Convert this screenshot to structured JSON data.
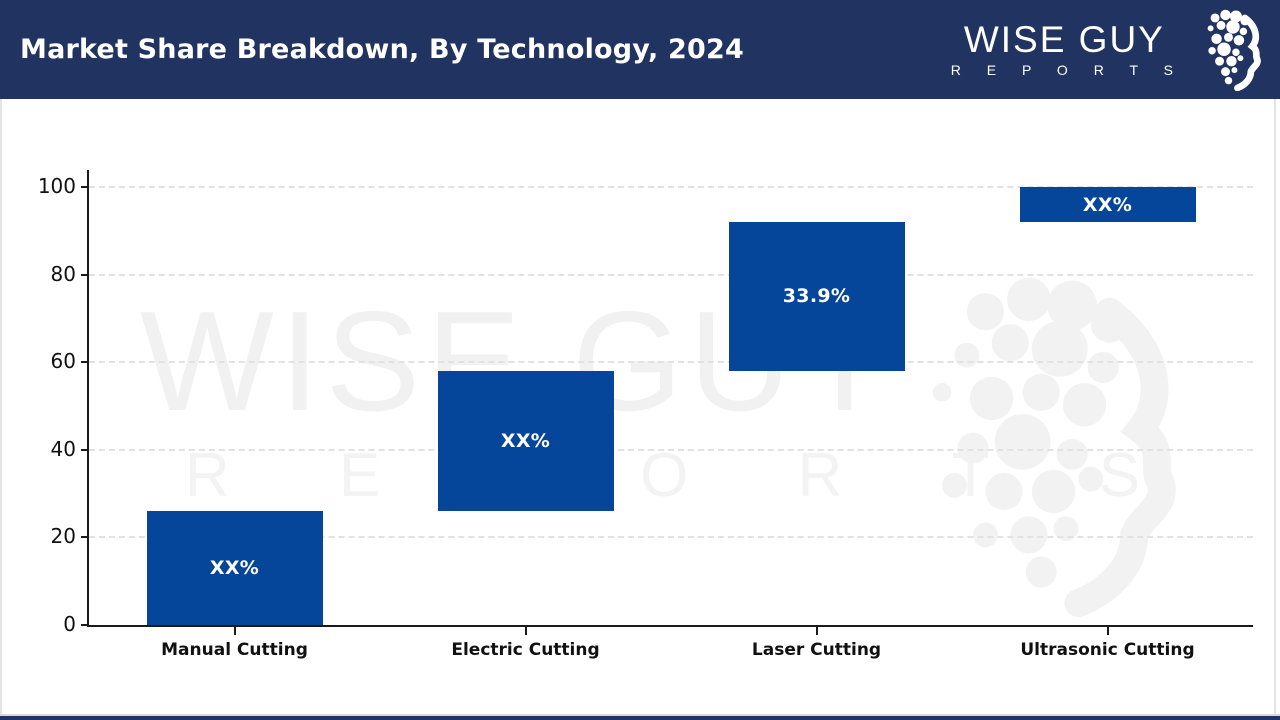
{
  "header": {
    "title": "Market Share Breakdown, By Technology, 2024",
    "logo": {
      "line1": "WISE GUY",
      "line2": "R E P O R T S"
    }
  },
  "watermark": {
    "line1": "WISE GUY",
    "line2": "REPORTS"
  },
  "colors": {
    "header_bg": "#213461",
    "bar_fill": "#05459a",
    "bar_label": "#ffffff",
    "axis": "#1a1a1a",
    "gridline": "#e2e2e2",
    "watermark": "#f1f1f1"
  },
  "chart_data": {
    "type": "bar",
    "subtype": "waterfall",
    "title": "Market Share Breakdown, By Technology, 2024",
    "categories": [
      "Manual Cutting",
      "Electric Cutting",
      "Laser Cutting",
      "Ultrasonic Cutting"
    ],
    "segments": [
      {
        "category": "Manual Cutting",
        "start": 0,
        "end": 26.1,
        "label": "XX%"
      },
      {
        "category": "Electric Cutting",
        "start": 26.1,
        "end": 58.1,
        "label": "XX%"
      },
      {
        "category": "Laser Cutting",
        "start": 58.1,
        "end": 92.0,
        "label": "33.9%"
      },
      {
        "category": "Ultrasonic Cutting",
        "start": 92.0,
        "end": 100,
        "label": "XX%"
      }
    ],
    "xlabel": "",
    "ylabel": "",
    "ylim": [
      0,
      100
    ],
    "yticks": [
      0,
      20,
      40,
      60,
      80,
      100
    ],
    "grid": "horizontal-dashed",
    "legend": "none",
    "bar_color": "#05459a"
  }
}
